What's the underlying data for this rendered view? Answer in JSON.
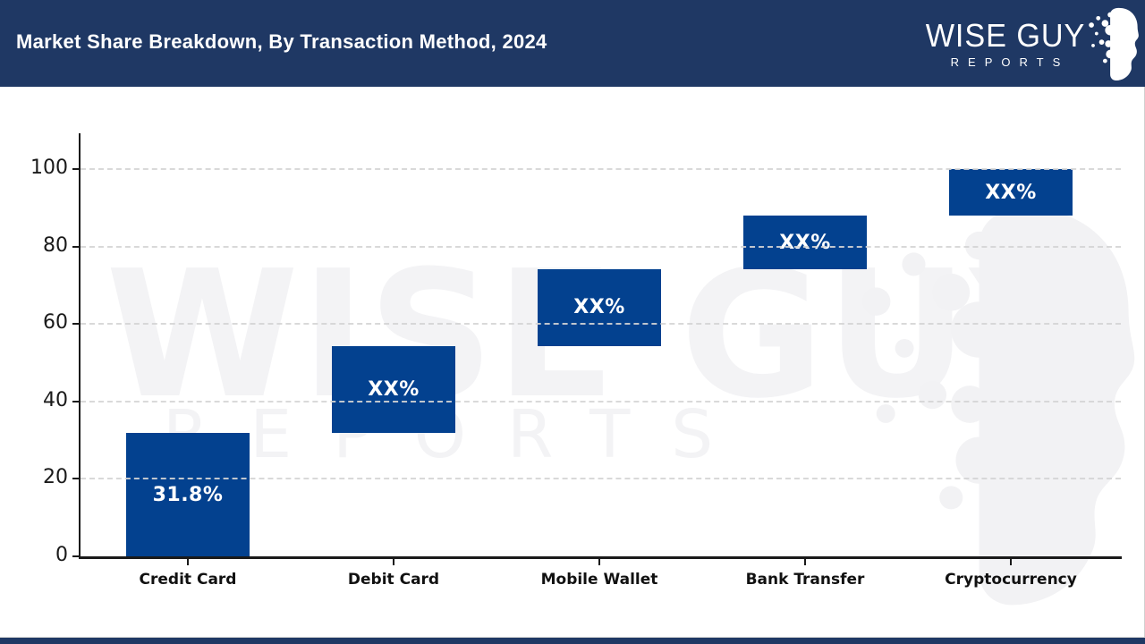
{
  "header": {
    "title": "Market Share Breakdown, By Transaction Method, 2024",
    "logo": {
      "line1": "WISE GUY",
      "line2": "REPORTS"
    }
  },
  "watermark": {
    "line1": "WISE GUY",
    "line2": "REPORTS"
  },
  "chart_data": {
    "type": "bar",
    "subtype": "waterfall",
    "title": "Market Share Breakdown, By Transaction Method, 2024",
    "categories": [
      "Credit Card",
      "Debit Card",
      "Mobile Wallet",
      "Bank Transfer",
      "Cryptocurrency"
    ],
    "segments": [
      {
        "category": "Credit Card",
        "start": 0,
        "end": 31.8,
        "value": 31.8,
        "label": "31.8%"
      },
      {
        "category": "Debit Card",
        "start": 31.8,
        "end": 54.3,
        "value": 22.5,
        "label": "XX%"
      },
      {
        "category": "Mobile Wallet",
        "start": 54.3,
        "end": 74.2,
        "value": 19.9,
        "label": "XX%"
      },
      {
        "category": "Bank Transfer",
        "start": 74.2,
        "end": 87.9,
        "value": 13.7,
        "label": "XX%"
      },
      {
        "category": "Cryptocurrency",
        "start": 87.9,
        "end": 100,
        "value": 12.1,
        "label": "XX%"
      }
    ],
    "xlabel": "",
    "ylabel": "",
    "ylim": [
      0,
      100
    ],
    "yticks": [
      0,
      20,
      40,
      60,
      80,
      100
    ],
    "grid": "horizontal-dashed",
    "legend": "none",
    "bar_color": "#03418f",
    "bar_label_color": "#ffffff"
  },
  "colors": {
    "header_bg": "#1f3864",
    "footer_bg": "#1f3864",
    "bar": "#03418f",
    "grid": "#d5d5d5",
    "axis": "#1a1a1a",
    "watermark": "#f3f3f5",
    "title_text": "#ffffff"
  }
}
